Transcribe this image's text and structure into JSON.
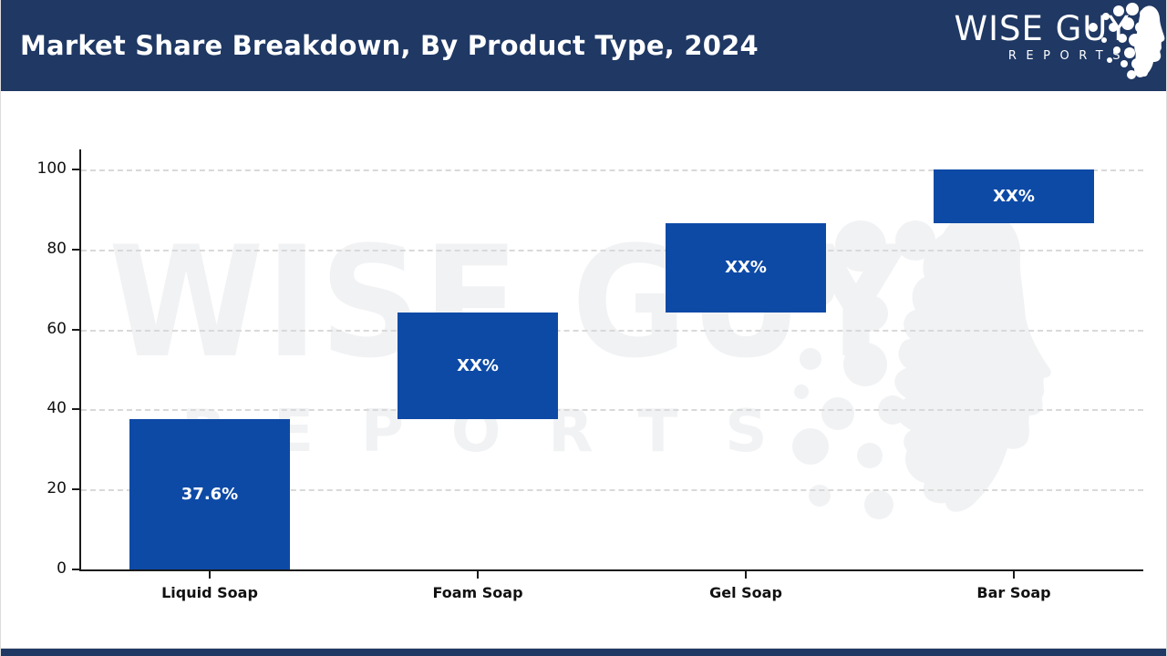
{
  "header": {
    "title": "Market Share Breakdown, By Product Type, 2024",
    "logo": {
      "name_top": "WISE GUY",
      "name_bottom": "REPORTS"
    }
  },
  "watermark": {
    "text_top": "WISE GUY",
    "text_bottom": "REPORTS"
  },
  "colors": {
    "header_bg": "#1f3864",
    "footer_bg": "#1f3864",
    "bar_fill": "#0d4aa6",
    "bar_label": "#ffffff",
    "grid": "#d9d9d9",
    "axis": "#1a1a1a",
    "tick_label": "#111111",
    "watermark": "#f1f2f4"
  },
  "chart_data": {
    "type": "bar",
    "variant": "waterfall",
    "title": "Market Share Breakdown, By Product Type, 2024",
    "categories": [
      "Liquid Soap",
      "Foam Soap",
      "Gel Soap",
      "Bar Soap"
    ],
    "segments": [
      {
        "category": "Liquid Soap",
        "start": 0,
        "end": 37.6,
        "label": "37.6%"
      },
      {
        "category": "Foam Soap",
        "start": 37.6,
        "end": 64.2,
        "label": "XX%"
      },
      {
        "category": "Gel Soap",
        "start": 64.2,
        "end": 86.6,
        "label": "XX%"
      },
      {
        "category": "Bar Soap",
        "start": 86.6,
        "end": 100,
        "label": "XX%"
      }
    ],
    "yticks": [
      0,
      20,
      40,
      60,
      80,
      100
    ],
    "ylim": [
      0,
      105
    ],
    "xlabel": "",
    "ylabel": "",
    "grid": "horizontal-dashed",
    "legend": "none"
  }
}
